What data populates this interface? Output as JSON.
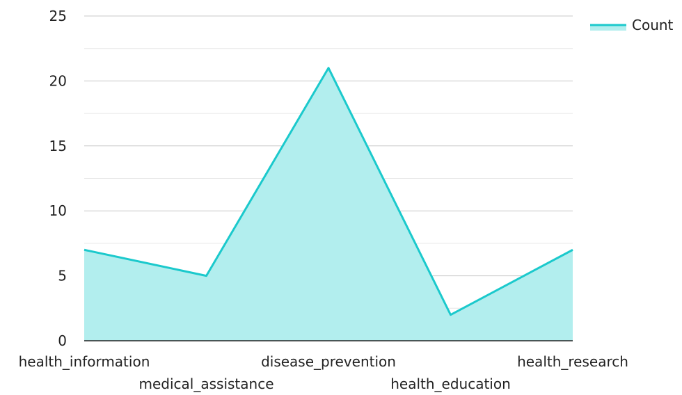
{
  "chart_data": {
    "type": "area",
    "categories": [
      "health_information",
      "medical_assistance",
      "disease_prevention",
      "health_education",
      "health_research"
    ],
    "series": [
      {
        "name": "Count",
        "values": [
          7,
          5,
          21,
          2,
          7
        ]
      }
    ],
    "ylim": [
      0,
      25
    ],
    "yticks": [
      0,
      5,
      10,
      15,
      20,
      25
    ],
    "grid": true,
    "legend_position": "top-right",
    "colors": {
      "line": "#1bc9cc",
      "fill": "#b2eeee",
      "grid": "#c8c8c8",
      "minor_grid": "#e6e6e6",
      "axis": "#222222"
    }
  }
}
